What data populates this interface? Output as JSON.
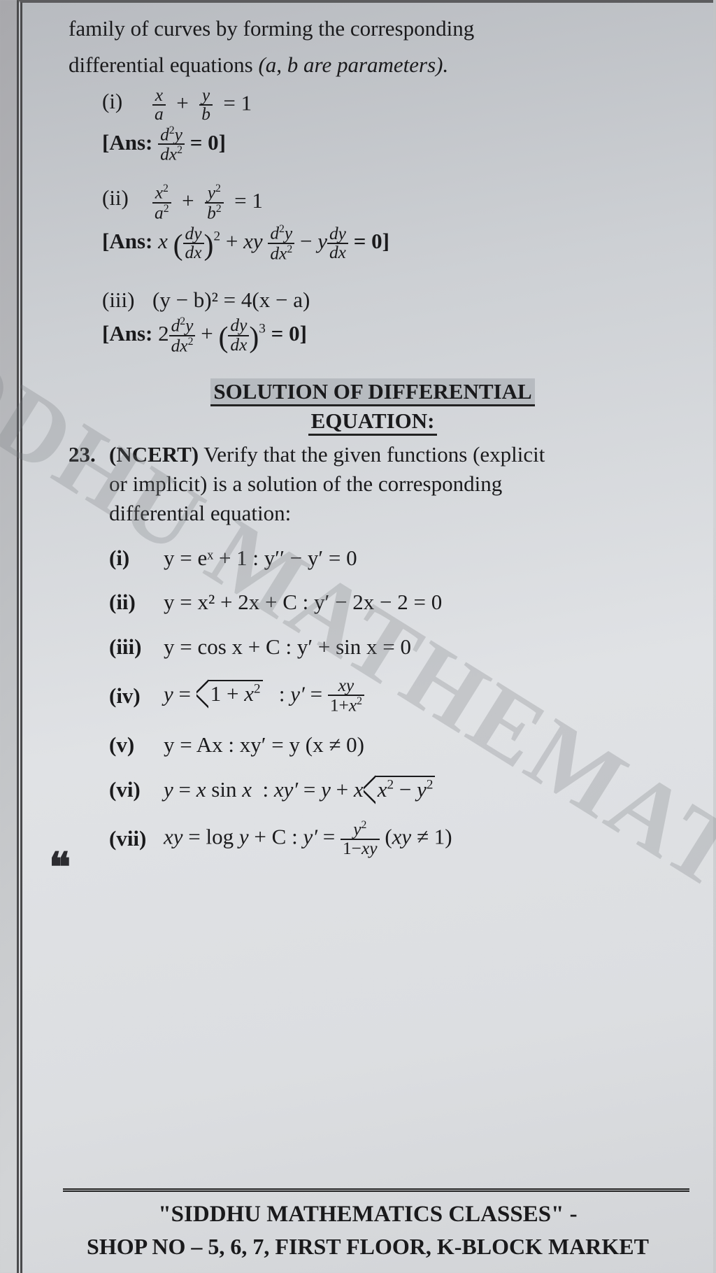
{
  "intro_l1": "family of curves by forming the corresponding",
  "intro_l2": "differential equations",
  "intro_params": "(a, b are parameters).",
  "q22": {
    "i": {
      "lbl": "(i)",
      "ans_pre": "[Ans:",
      "ans_post": "= 0]"
    },
    "ii": {
      "lbl": "(ii)",
      "ans_pre": "[Ans:",
      "ans_post": "= 0]"
    },
    "iii": {
      "lbl": "(iii)",
      "eq": "(y − b)² = 4(x − a)",
      "ans_pre": "[Ans:",
      "ans_post": "= 0]"
    }
  },
  "section": {
    "l1": "SOLUTION OF DIFFERENTIAL",
    "l2": "EQUATION:"
  },
  "q23": {
    "num": "23.",
    "src": "(NCERT)",
    "t1": "Verify that the given functions (explicit",
    "t2": "or implicit) is a solution of the corresponding",
    "t3": "differential equation:",
    "i": {
      "lbl": "(i)",
      "eq": "y = eˣ + 1  :  y′′ − y′ = 0"
    },
    "ii": {
      "lbl": "(ii)",
      "eq": "y = x² + 2x + C : y′ − 2x − 2 = 0"
    },
    "iii": {
      "lbl": "(iii)",
      "eq": "y = cos x + C  :  y′ + sin x = 0"
    },
    "iv": {
      "lbl": "(iv)"
    },
    "v": {
      "lbl": "(v)",
      "eq": "y = Ax  :  xy′ = y (x ≠ 0)"
    },
    "vi": {
      "lbl": "(vi)"
    },
    "vii": {
      "lbl": "(vii)"
    }
  },
  "footer": {
    "l1": "\"SIDDHU MATHEMATICS CLASSES\" -",
    "l2": "SHOP NO – 5, 6, 7, FIRST FLOOR, K-BLOCK MARKET"
  },
  "watermark": "SIDDHU MATHEMATICS",
  "colors": {
    "text": "#1a1a1c",
    "wm": "rgba(115,118,122,.26)",
    "hl": "#b7bbc0"
  }
}
